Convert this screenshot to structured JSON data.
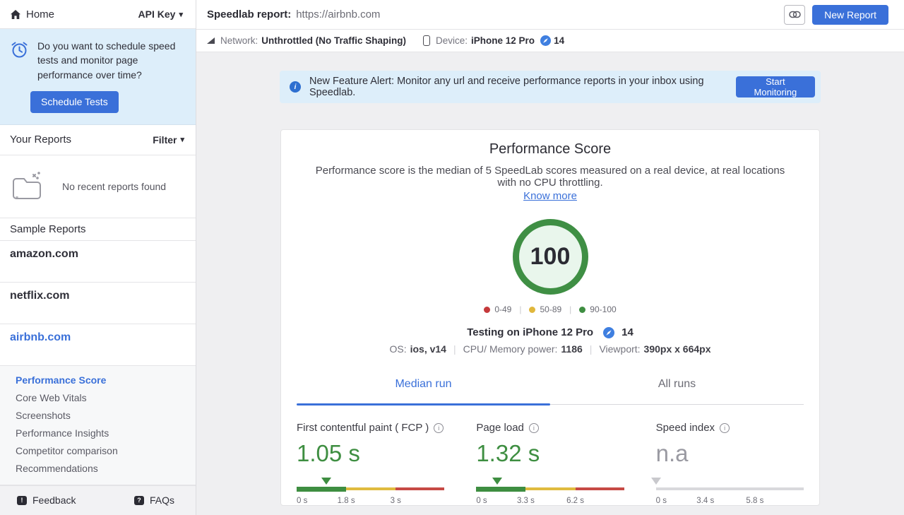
{
  "header": {
    "home_label": "Home",
    "api_key_label": "API Key",
    "report_label": "Speedlab report:",
    "report_url": "https://airbnb.com",
    "new_report_label": "New Report"
  },
  "subheader": {
    "network_label": "Network:",
    "network_value": "Unthrottled (No Traffic Shaping)",
    "device_label": "Device:",
    "device_value": "iPhone 12 Pro",
    "browser_version": "14"
  },
  "sidebar": {
    "promo": {
      "text": "Do you want to schedule speed tests and monitor page performance over time?",
      "button_label": "Schedule Tests"
    },
    "your_reports_label": "Your Reports",
    "filter_label": "Filter",
    "empty_text": "No recent reports found",
    "sample_reports_label": "Sample Reports",
    "sample_sites": [
      {
        "label": "amazon.com"
      },
      {
        "label": "netflix.com"
      },
      {
        "label": "airbnb.com"
      }
    ],
    "nav_items": [
      "Performance Score",
      "Core Web Vitals",
      "Screenshots",
      "Performance Insights",
      "Competitor comparison",
      "Recommendations"
    ],
    "footer": {
      "feedback_label": "Feedback",
      "faqs_label": "FAQs"
    }
  },
  "alert": {
    "text": "New Feature Alert: Monitor any url and receive performance reports in your inbox using Speedlab.",
    "button_label": "Start Monitoring"
  },
  "score_card": {
    "title": "Performance Score",
    "description": "Performance score is the median of 5 SpeedLab scores measured on a real device, at real locations with no CPU throttling.",
    "know_more_label": "Know more",
    "score": "100",
    "score_color": "#3f8f44",
    "legend": [
      {
        "label": "0-49",
        "color": "#c5393b"
      },
      {
        "label": "50-89",
        "color": "#e0b73c"
      },
      {
        "label": "90-100",
        "color": "#3e8e41"
      }
    ],
    "testing_on": "Testing on iPhone 12 Pro",
    "browser_version": "14",
    "specs": [
      {
        "label": "OS:",
        "value": "ios, v14"
      },
      {
        "label": "CPU/ Memory power:",
        "value": "1186"
      },
      {
        "label": "Viewport:",
        "value": "390px x 664px"
      }
    ],
    "tabs": [
      {
        "label": "Median run"
      },
      {
        "label": "All runs"
      }
    ],
    "metrics": [
      {
        "title": "First contentful paint ( FCP )",
        "value": "1.05 s",
        "status": "good",
        "marker_pct": 20,
        "ticks": [
          "0 s",
          "1.8 s",
          "3 s"
        ]
      },
      {
        "title": "Page load",
        "value": "1.32 s",
        "status": "good",
        "marker_pct": 14,
        "ticks": [
          "0 s",
          "3.3 s",
          "6.2 s"
        ]
      },
      {
        "title": "Speed index",
        "value": "n.a",
        "status": "na",
        "marker_pct": 0,
        "ticks": [
          "0 s",
          "3.4 s",
          "5.8 s"
        ]
      }
    ]
  }
}
